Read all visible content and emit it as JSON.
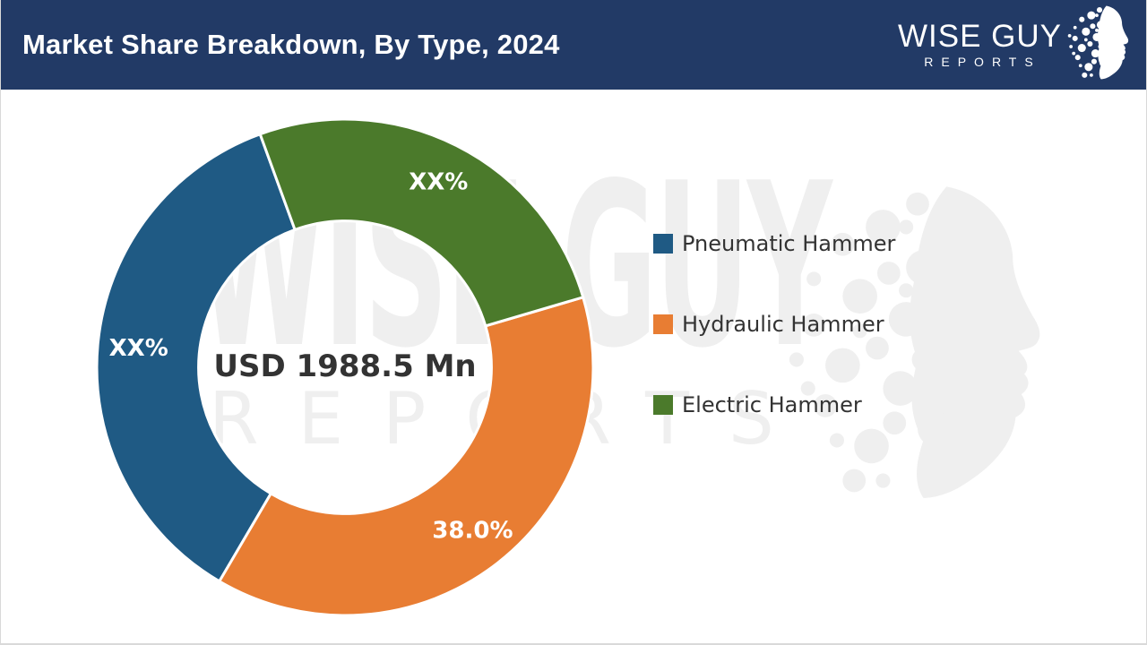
{
  "header": {
    "title": "Market Share Breakdown, By Type, 2024",
    "brand": {
      "line1": "WISE GUY",
      "line2": "REPORTS"
    }
  },
  "watermark": {
    "line1": "WISE GUY",
    "line2": "REPORTS"
  },
  "chart_data": {
    "type": "pie",
    "subtype": "donut",
    "title": "Market Share Breakdown, By Type, 2024",
    "center_label": "USD 1988.5 Mn",
    "legend_position": "right",
    "start_angle_deg": 110,
    "direction": "counterclockwise",
    "inner_radius_ratio": 0.59,
    "categories": [
      "Pneumatic Hammer",
      "Hydraulic Hammer",
      "Electric Hammer"
    ],
    "values_pct": [
      36.0,
      38.0,
      26.0
    ],
    "segments": [
      {
        "name": "Pneumatic Hammer",
        "label": "XX%",
        "value_pct": 36.0,
        "color": "#1f5a84"
      },
      {
        "name": "Hydraulic Hammer",
        "label": "38.0%",
        "value_pct": 38.0,
        "color": "#e87d33"
      },
      {
        "name": "Electric Hammer",
        "label": "XX%",
        "value_pct": 26.0,
        "color": "#4b7a2b"
      }
    ]
  },
  "colors": {
    "header_bg": "#223a66",
    "title_text": "#ffffff",
    "page_bg": "#ffffff",
    "watermark": "#efefef",
    "dark_text": "#333333",
    "segment_separator": "#ffffff"
  }
}
